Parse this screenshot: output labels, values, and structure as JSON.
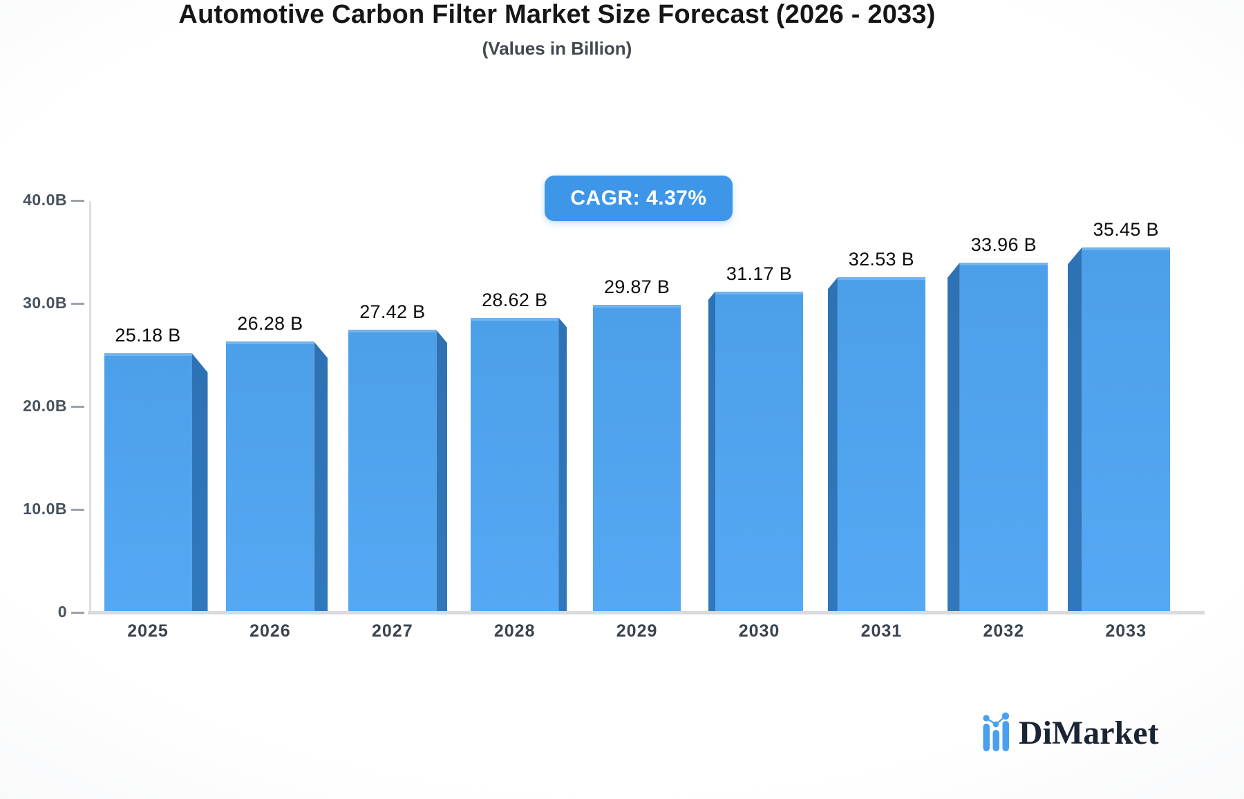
{
  "header": {
    "title": "Automotive Carbon Filter Market Size Forecast (2026 - 2033)",
    "subtitle": "(Values in Billion)"
  },
  "badge": {
    "label": "CAGR: 4.37%",
    "color": "#3E96E9"
  },
  "chart_data": {
    "type": "bar",
    "title": "Automotive Carbon Filter Market Size Forecast (2026 - 2033)",
    "subtitle": "(Values in Billion)",
    "categories": [
      "2025",
      "2026",
      "2027",
      "2028",
      "2029",
      "2030",
      "2031",
      "2032",
      "2033"
    ],
    "values": [
      25.18,
      26.28,
      27.42,
      28.62,
      29.87,
      31.17,
      32.53,
      33.96,
      35.45
    ],
    "value_labels": [
      "25.18 B",
      "26.28 B",
      "27.42 B",
      "28.62 B",
      "29.87 B",
      "31.17 B",
      "32.53 B",
      "33.96 B",
      "35.45 B"
    ],
    "xlabel": "",
    "ylabel": "",
    "ylim": [
      0,
      40
    ],
    "yticks": [
      {
        "value": 0,
        "label": "0"
      },
      {
        "value": 10,
        "label": "10.0B"
      },
      {
        "value": 20,
        "label": "20.0B"
      },
      {
        "value": 30,
        "label": "30.0B"
      },
      {
        "value": 40,
        "label": "40.0B"
      }
    ],
    "grid": false,
    "legend": false,
    "bar_color": "#4FA2ED",
    "bar_side_color": "#2E74B6"
  },
  "logo": {
    "text": "DiMarket",
    "icon": "mini-bar-chart-icon",
    "icon_color": "#4AA0F0",
    "text_color": "#1A2433"
  }
}
